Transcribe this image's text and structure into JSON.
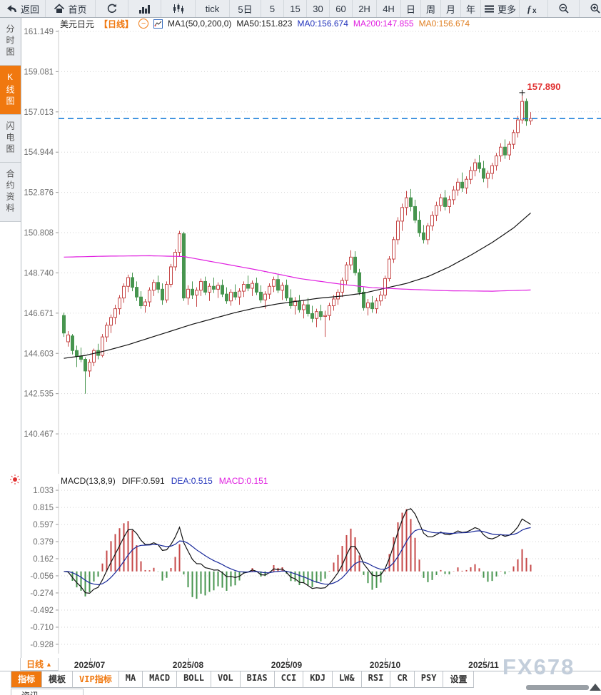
{
  "toolbar": {
    "buttons": [
      {
        "name": "back-button",
        "icon": "back",
        "label": "返回"
      },
      {
        "name": "home-button",
        "icon": "home",
        "label": "首页"
      },
      {
        "name": "refresh-button",
        "icon": "refresh",
        "label": ""
      },
      {
        "name": "line-chart-type-button",
        "icon": "bar-chart",
        "label": ""
      },
      {
        "name": "candlestick-type-button",
        "icon": "candlestick",
        "label": ""
      },
      {
        "name": "period-tick-button",
        "icon": "",
        "label": "tick"
      },
      {
        "name": "period-5day-button",
        "icon": "",
        "label": "5日"
      },
      {
        "name": "period-5-button",
        "icon": "",
        "label": "5"
      },
      {
        "name": "period-15-button",
        "icon": "",
        "label": "15"
      },
      {
        "name": "period-30-button",
        "icon": "",
        "label": "30"
      },
      {
        "name": "period-60-button",
        "icon": "",
        "label": "60"
      },
      {
        "name": "period-2h-button",
        "icon": "",
        "label": "2H"
      },
      {
        "name": "period-4h-button",
        "icon": "",
        "label": "4H"
      },
      {
        "name": "period-day-button",
        "icon": "",
        "label": "日"
      },
      {
        "name": "period-week-button",
        "icon": "",
        "label": "周"
      },
      {
        "name": "period-month-button",
        "icon": "",
        "label": "月"
      },
      {
        "name": "period-year-button",
        "icon": "",
        "label": "年"
      },
      {
        "name": "more-button",
        "icon": "menu",
        "label": "更多"
      },
      {
        "name": "fx-indicator-button",
        "icon": "fx",
        "label": ""
      },
      {
        "name": "zoom-out-button",
        "icon": "zoom-out",
        "label": ""
      },
      {
        "name": "zoom-in-button",
        "icon": "zoom-in",
        "label": ""
      }
    ]
  },
  "sidebar": {
    "items": [
      {
        "name": "sidebar-item-time-chart",
        "label": "分时图",
        "active": false
      },
      {
        "name": "sidebar-item-kline-chart",
        "label": "K线图",
        "active": true
      },
      {
        "name": "sidebar-item-lightning-chart",
        "label": "闪电图",
        "active": false
      },
      {
        "name": "sidebar-item-contract-info",
        "label": "合约资料",
        "active": false
      }
    ]
  },
  "chart_header": {
    "symbol": "美元日元",
    "period_tag": "【日线】",
    "ma_params": "MA1(50,0,200,0)",
    "ma50_label": "MA50:151.823",
    "ma0_blue_label": "MA0:156.674",
    "ma200_label": "MA200:147.855",
    "ma0_orange_label": "MA0:156.674"
  },
  "macd_header": {
    "params": "MACD(13,8,9)",
    "diff_label": "DIFF:0.591",
    "dea_label": "DEA:0.515",
    "macd_label": "MACD:0.151"
  },
  "price_axis": [
    "161.149",
    "159.081",
    "157.013",
    "154.944",
    "152.876",
    "150.808",
    "148.740",
    "146.671",
    "144.603",
    "142.535",
    "140.467"
  ],
  "macd_axis": [
    "1.033",
    "0.815",
    "0.597",
    "0.379",
    "0.162",
    "-0.056",
    "-0.274",
    "-0.492",
    "-0.710",
    "-0.928"
  ],
  "annotations": {
    "high_label": "157.890",
    "high_value": 157.89,
    "high_index": 107,
    "last_price": 156.674
  },
  "bottom": {
    "period_box": "日线",
    "period_box_arrow": "▲",
    "date_labels": [
      {
        "label": "2025/07",
        "index": 6
      },
      {
        "label": "2025/08",
        "index": 29
      },
      {
        "label": "2025/09",
        "index": 52
      },
      {
        "label": "2025/10",
        "index": 75
      },
      {
        "label": "2025/11",
        "index": 98
      }
    ],
    "tabs": [
      {
        "name": "tab-indicator",
        "label": "指标",
        "style": "active"
      },
      {
        "name": "tab-template",
        "label": "模板",
        "style": ""
      },
      {
        "name": "tab-vip-indicator",
        "label": "VIP指标",
        "style": "vip"
      },
      {
        "name": "tab-ma",
        "label": "MA",
        "style": ""
      },
      {
        "name": "tab-macd",
        "label": "MACD",
        "style": ""
      },
      {
        "name": "tab-boll",
        "label": "BOLL",
        "style": ""
      },
      {
        "name": "tab-vol",
        "label": "VOL",
        "style": ""
      },
      {
        "name": "tab-bias",
        "label": "BIAS",
        "style": ""
      },
      {
        "name": "tab-cci",
        "label": "CCI",
        "style": ""
      },
      {
        "name": "tab-kdj",
        "label": "KDJ",
        "style": ""
      },
      {
        "name": "tab-lw",
        "label": "LW&",
        "style": ""
      },
      {
        "name": "tab-rsi",
        "label": "RSI",
        "style": ""
      },
      {
        "name": "tab-cr",
        "label": "CR",
        "style": ""
      },
      {
        "name": "tab-psy",
        "label": "PSY",
        "style": ""
      },
      {
        "name": "tab-settings",
        "label": "设置",
        "style": ""
      }
    ],
    "partial_tab": "资讯",
    "watermark": "FX678"
  },
  "colors": {
    "accent_orange": "#f0780f",
    "up": "#c64848",
    "down": "#47954f",
    "ma50": "#111111",
    "ma200": "#e020e0",
    "blue_value": "#2233bb",
    "orange_value": "#e08024",
    "dea_line": "#1a2a9a",
    "diff_line": "#111111",
    "price_line": "#1b7fd9",
    "annotation": "#e03030",
    "grid": "#d6d6d6",
    "axis_text": "#6f6f6f",
    "symbol_text": "#222222",
    "watermark": "#c3cedb"
  },
  "chart_data": {
    "type": "candlestick+macd",
    "title": "美元日元 日线 (USD/JPY daily)",
    "x_axis_months": [
      "2025/07",
      "2025/08",
      "2025/09",
      "2025/10",
      "2025/11"
    ],
    "price_range": [
      140.467,
      161.149
    ],
    "macd_range": [
      -0.928,
      1.033
    ],
    "macd_params": [
      13,
      8,
      9
    ],
    "last_values": {
      "ma50": 151.823,
      "ma200": 147.855,
      "ma0": 156.674,
      "diff": 0.591,
      "dea": 0.515,
      "macd": 0.151,
      "high": 157.89,
      "last": 156.674
    },
    "candles": [
      [
        146.55,
        146.7,
        145.45,
        145.65
      ],
      [
        145.2,
        145.75,
        144.95,
        145.55
      ],
      [
        145.5,
        145.6,
        144.55,
        144.75
      ],
      [
        144.75,
        145.0,
        143.9,
        144.45
      ],
      [
        144.45,
        144.9,
        144.15,
        144.3
      ],
      [
        144.3,
        144.4,
        142.53,
        143.7
      ],
      [
        143.7,
        144.3,
        143.4,
        144.15
      ],
      [
        144.15,
        144.85,
        143.95,
        144.75
      ],
      [
        144.75,
        145.1,
        144.3,
        144.5
      ],
      [
        144.5,
        145.6,
        144.4,
        145.45
      ],
      [
        145.45,
        146.2,
        145.2,
        146.05
      ],
      [
        146.05,
        146.6,
        145.65,
        146.45
      ],
      [
        146.45,
        147.1,
        146.1,
        146.9
      ],
      [
        146.9,
        147.6,
        146.6,
        147.45
      ],
      [
        147.45,
        148.2,
        147.2,
        148.05
      ],
      [
        148.05,
        148.65,
        147.75,
        148.5
      ],
      [
        148.5,
        148.75,
        147.8,
        148.0
      ],
      [
        148.0,
        148.3,
        147.3,
        147.5
      ],
      [
        147.5,
        147.8,
        146.9,
        147.05
      ],
      [
        147.05,
        147.4,
        146.7,
        147.25
      ],
      [
        147.25,
        148.0,
        147.0,
        147.85
      ],
      [
        147.85,
        148.4,
        147.55,
        148.25
      ],
      [
        148.25,
        148.6,
        147.7,
        147.9
      ],
      [
        147.9,
        148.2,
        147.1,
        147.35
      ],
      [
        147.35,
        148.3,
        147.2,
        148.15
      ],
      [
        148.15,
        149.2,
        148.0,
        149.05
      ],
      [
        149.05,
        149.95,
        148.85,
        149.8
      ],
      [
        149.8,
        150.9,
        149.6,
        150.75
      ],
      [
        150.75,
        150.85,
        147.3,
        147.45
      ],
      [
        147.45,
        148.1,
        147.1,
        147.9
      ],
      [
        147.9,
        148.3,
        147.4,
        147.6
      ],
      [
        147.6,
        148.0,
        147.0,
        147.85
      ],
      [
        147.85,
        148.45,
        147.55,
        148.3
      ],
      [
        148.3,
        148.55,
        147.6,
        147.75
      ],
      [
        147.75,
        148.2,
        147.3,
        148.05
      ],
      [
        148.05,
        148.5,
        147.7,
        147.9
      ],
      [
        147.9,
        148.25,
        147.45,
        148.1
      ],
      [
        148.1,
        148.4,
        147.5,
        147.65
      ],
      [
        147.65,
        148.0,
        147.15,
        147.3
      ],
      [
        147.3,
        147.9,
        147.05,
        147.75
      ],
      [
        147.75,
        148.15,
        147.35,
        147.5
      ],
      [
        147.5,
        147.95,
        147.1,
        147.8
      ],
      [
        147.8,
        148.3,
        147.5,
        148.15
      ],
      [
        148.15,
        148.6,
        147.8,
        147.95
      ],
      [
        147.95,
        148.35,
        147.55,
        148.2
      ],
      [
        148.2,
        148.5,
        147.6,
        147.75
      ],
      [
        147.75,
        148.1,
        147.2,
        147.35
      ],
      [
        147.35,
        147.8,
        146.9,
        147.65
      ],
      [
        147.65,
        148.2,
        147.4,
        148.05
      ],
      [
        148.05,
        148.55,
        147.75,
        148.4
      ],
      [
        148.4,
        148.65,
        147.7,
        147.85
      ],
      [
        147.85,
        148.25,
        147.35,
        148.1
      ],
      [
        148.1,
        148.4,
        147.3,
        147.45
      ],
      [
        147.45,
        147.9,
        146.9,
        147.05
      ],
      [
        147.05,
        147.5,
        146.6,
        147.3
      ],
      [
        147.3,
        147.6,
        146.7,
        146.85
      ],
      [
        146.85,
        147.3,
        146.4,
        147.1
      ],
      [
        147.1,
        147.45,
        146.5,
        146.65
      ],
      [
        146.65,
        147.05,
        146.2,
        146.4
      ],
      [
        146.4,
        146.9,
        145.95,
        146.75
      ],
      [
        146.75,
        147.1,
        146.3,
        146.5
      ],
      [
        146.5,
        146.8,
        145.45,
        146.55
      ],
      [
        146.55,
        147.2,
        146.3,
        147.05
      ],
      [
        147.05,
        147.6,
        146.8,
        147.4
      ],
      [
        147.4,
        147.9,
        147.1,
        147.75
      ],
      [
        147.75,
        148.5,
        147.5,
        148.35
      ],
      [
        148.35,
        149.3,
        148.15,
        149.15
      ],
      [
        149.15,
        149.9,
        148.9,
        149.55
      ],
      [
        149.55,
        149.85,
        148.6,
        148.75
      ],
      [
        148.75,
        148.95,
        147.6,
        147.75
      ],
      [
        147.75,
        148.0,
        146.8,
        146.95
      ],
      [
        146.95,
        147.4,
        146.55,
        147.2
      ],
      [
        147.2,
        147.55,
        146.7,
        146.9
      ],
      [
        146.9,
        147.45,
        146.65,
        147.3
      ],
      [
        147.3,
        147.8,
        147.05,
        147.6
      ],
      [
        147.6,
        148.6,
        147.4,
        148.45
      ],
      [
        148.45,
        149.6,
        148.3,
        149.45
      ],
      [
        149.45,
        150.6,
        149.25,
        150.45
      ],
      [
        150.45,
        151.6,
        150.2,
        151.4
      ],
      [
        151.4,
        152.3,
        150.9,
        152.1
      ],
      [
        152.1,
        152.95,
        151.7,
        152.6
      ],
      [
        152.6,
        153.05,
        151.9,
        152.15
      ],
      [
        152.15,
        152.5,
        151.3,
        151.45
      ],
      [
        151.45,
        151.9,
        150.6,
        150.8
      ],
      [
        150.8,
        151.2,
        150.25,
        150.45
      ],
      [
        150.45,
        151.3,
        150.2,
        151.15
      ],
      [
        151.15,
        151.9,
        150.9,
        151.7
      ],
      [
        151.7,
        152.4,
        151.4,
        152.2
      ],
      [
        152.2,
        152.8,
        151.9,
        152.6
      ],
      [
        152.6,
        153.0,
        151.95,
        152.15
      ],
      [
        152.15,
        152.7,
        151.8,
        152.5
      ],
      [
        152.5,
        153.2,
        152.25,
        153.0
      ],
      [
        153.0,
        153.6,
        152.7,
        153.4
      ],
      [
        153.4,
        153.9,
        152.9,
        153.1
      ],
      [
        153.1,
        153.7,
        152.8,
        153.55
      ],
      [
        153.55,
        154.2,
        153.3,
        154.0
      ],
      [
        154.0,
        154.6,
        153.7,
        154.4
      ],
      [
        154.4,
        154.8,
        153.9,
        154.1
      ],
      [
        154.1,
        154.5,
        153.4,
        153.6
      ],
      [
        153.6,
        154.0,
        153.1,
        153.85
      ],
      [
        153.85,
        154.4,
        153.55,
        154.25
      ],
      [
        154.25,
        154.9,
        154.0,
        154.75
      ],
      [
        154.75,
        155.4,
        154.45,
        155.2
      ],
      [
        155.2,
        155.6,
        154.6,
        154.8
      ],
      [
        154.8,
        155.5,
        154.55,
        155.35
      ],
      [
        155.35,
        156.1,
        155.1,
        155.95
      ],
      [
        155.95,
        156.8,
        155.7,
        156.6
      ],
      [
        156.6,
        157.89,
        156.4,
        157.55
      ],
      [
        157.55,
        157.7,
        156.3,
        156.55
      ],
      [
        156.55,
        157.0,
        156.35,
        156.67
      ]
    ],
    "ma50_points": [
      [
        0,
        144.35
      ],
      [
        5,
        144.5
      ],
      [
        10,
        144.75
      ],
      [
        15,
        145.05
      ],
      [
        20,
        145.4
      ],
      [
        25,
        145.75
      ],
      [
        30,
        146.1
      ],
      [
        35,
        146.4
      ],
      [
        40,
        146.7
      ],
      [
        45,
        146.95
      ],
      [
        50,
        147.15
      ],
      [
        55,
        147.3
      ],
      [
        60,
        147.45
      ],
      [
        65,
        147.55
      ],
      [
        70,
        147.7
      ],
      [
        75,
        147.95
      ],
      [
        80,
        148.2
      ],
      [
        85,
        148.55
      ],
      [
        90,
        149.05
      ],
      [
        95,
        149.65
      ],
      [
        100,
        150.3
      ],
      [
        105,
        151.05
      ],
      [
        109,
        151.82
      ]
    ],
    "ma200_points": [
      [
        0,
        149.55
      ],
      [
        10,
        149.6
      ],
      [
        20,
        149.62
      ],
      [
        28,
        149.58
      ],
      [
        35,
        149.3
      ],
      [
        45,
        148.9
      ],
      [
        55,
        148.45
      ],
      [
        65,
        148.15
      ],
      [
        72,
        147.98
      ],
      [
        80,
        147.9
      ],
      [
        90,
        147.82
      ],
      [
        100,
        147.8
      ],
      [
        109,
        147.86
      ]
    ]
  }
}
